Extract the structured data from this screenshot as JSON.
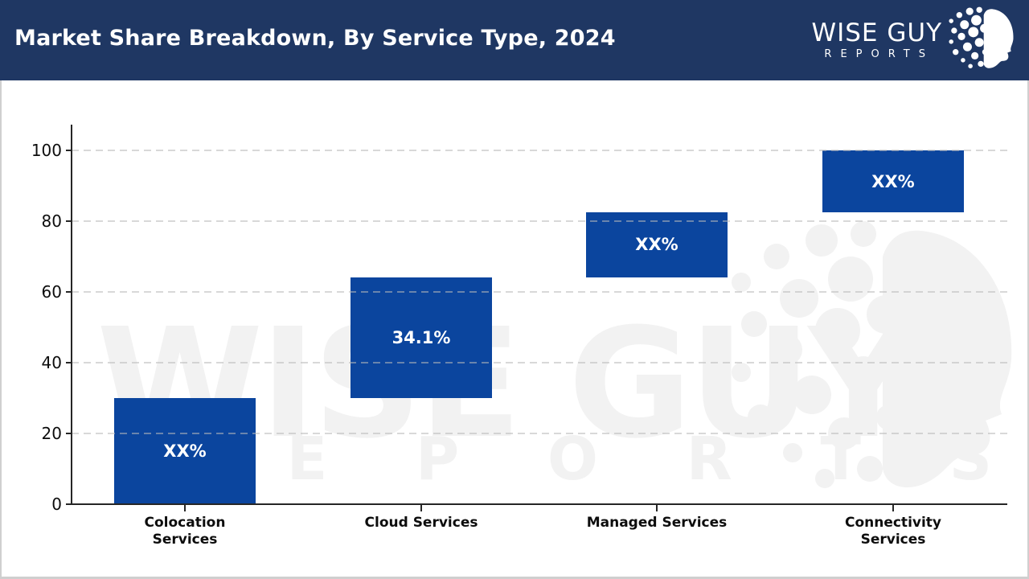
{
  "header": {
    "title": "Market Share Breakdown, By Service Type, 2024",
    "logo": {
      "line1": "WISE GUY",
      "line2": "REPORTS"
    }
  },
  "watermark": {
    "line1": "WISE GUY",
    "line2": "REPORTS"
  },
  "colors": {
    "header_bg": "#1f3763",
    "bar": "#0b459e",
    "axis": "#262626",
    "gridline": "#d9d9d9",
    "bar_label": "#ffffff",
    "watermark": "#f2f2f2"
  },
  "chart_data": {
    "type": "bar",
    "subtype": "waterfall",
    "title": "Market Share Breakdown, By Service Type, 2024",
    "categories": [
      "Colocation Services",
      "Cloud Services",
      "Managed Services",
      "Connectivity Services"
    ],
    "segments": [
      {
        "category": "Colocation Services",
        "start": 0,
        "end": 30,
        "label": "XX%"
      },
      {
        "category": "Cloud Services",
        "start": 30,
        "end": 64.1,
        "label": "34.1%",
        "value": 34.1
      },
      {
        "category": "Managed Services",
        "start": 64.1,
        "end": 82.5,
        "label": "XX%"
      },
      {
        "category": "Connectivity Services",
        "start": 82.5,
        "end": 100,
        "label": "XX%"
      }
    ],
    "xlabel": "",
    "ylabel": "",
    "ylim": [
      0,
      100
    ],
    "yticks": [
      0,
      20,
      40,
      60,
      80,
      100
    ],
    "grid": "horizontal-dashed",
    "legend": "none"
  }
}
